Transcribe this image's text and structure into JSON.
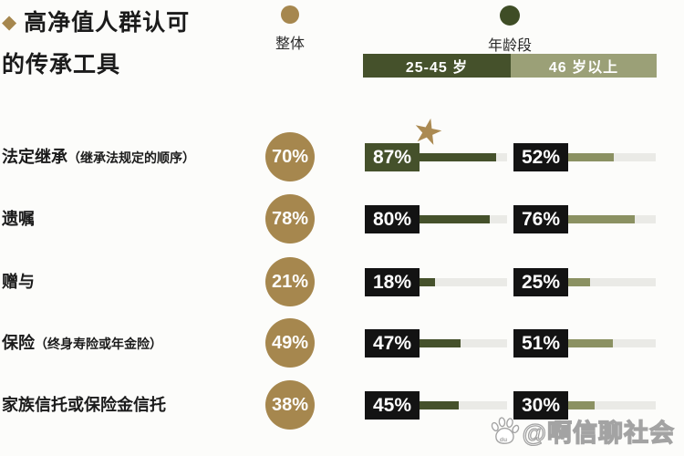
{
  "title": {
    "diamond": "◆",
    "line1": "高净值人群认可",
    "line2": "的传承工具"
  },
  "legend": {
    "overall_label": "整体",
    "age_label": "年龄段",
    "age_groups": [
      {
        "label": "25-45 岁"
      },
      {
        "label": "46 岁以上"
      }
    ]
  },
  "rows": [
    {
      "label": "法定继承",
      "note": "（继承法规定的顺序）",
      "overall": "70%",
      "g1_label": "87%",
      "g1_pct": 87,
      "g2_label": "52%",
      "g2_pct": 52,
      "starred": true
    },
    {
      "label": "遗嘱",
      "note": "",
      "overall": "78%",
      "g1_label": "80%",
      "g1_pct": 80,
      "g2_label": "76%",
      "g2_pct": 76,
      "starred": false
    },
    {
      "label": "赠与",
      "note": "",
      "overall": "21%",
      "g1_label": "18%",
      "g1_pct": 18,
      "g2_label": "25%",
      "g2_pct": 25,
      "starred": false
    },
    {
      "label": "保险",
      "note": "（终身寿险或年金险）",
      "overall": "49%",
      "g1_label": "47%",
      "g1_pct": 47,
      "g2_label": "51%",
      "g2_pct": 51,
      "starred": false
    },
    {
      "label": "家族信托或保险金信托",
      "note": "",
      "overall": "38%",
      "g1_label": "45%",
      "g1_pct": 45,
      "g2_label": "30%",
      "g2_pct": 30,
      "starred": false
    }
  ],
  "icons": {
    "star": "★",
    "paw": "baidu-paw-icon",
    "du": "du"
  },
  "watermark": {
    "handle": "@啊信聊社会"
  },
  "colors": {
    "gold": "#a6874e",
    "dark_green": "#45512b",
    "olive": "#8b9162",
    "olive_light": "#9ba077",
    "black_box": "#131313",
    "track_gray": "#eaeae6",
    "background": "#fcfcfa",
    "text": "#1b1b1b"
  },
  "chart_data": {
    "type": "bar",
    "title": "高净值人群认可的传承工具",
    "categories": [
      "法定继承（继承法规定的顺序）",
      "遗嘱",
      "赠与",
      "保险（终身寿险或年金险）",
      "家族信托或保险金信托"
    ],
    "series": [
      {
        "name": "整体",
        "values": [
          70,
          78,
          21,
          49,
          38
        ]
      },
      {
        "name": "25-45 岁",
        "values": [
          87,
          80,
          18,
          47,
          45
        ]
      },
      {
        "name": "46 岁以上",
        "values": [
          52,
          76,
          25,
          51,
          30
        ]
      }
    ],
    "unit": "%",
    "xlim": [
      0,
      100
    ],
    "legend_position": "top",
    "grid": false,
    "annotations": [
      "star marker on 87% (25-45岁, 法定继承)"
    ]
  }
}
